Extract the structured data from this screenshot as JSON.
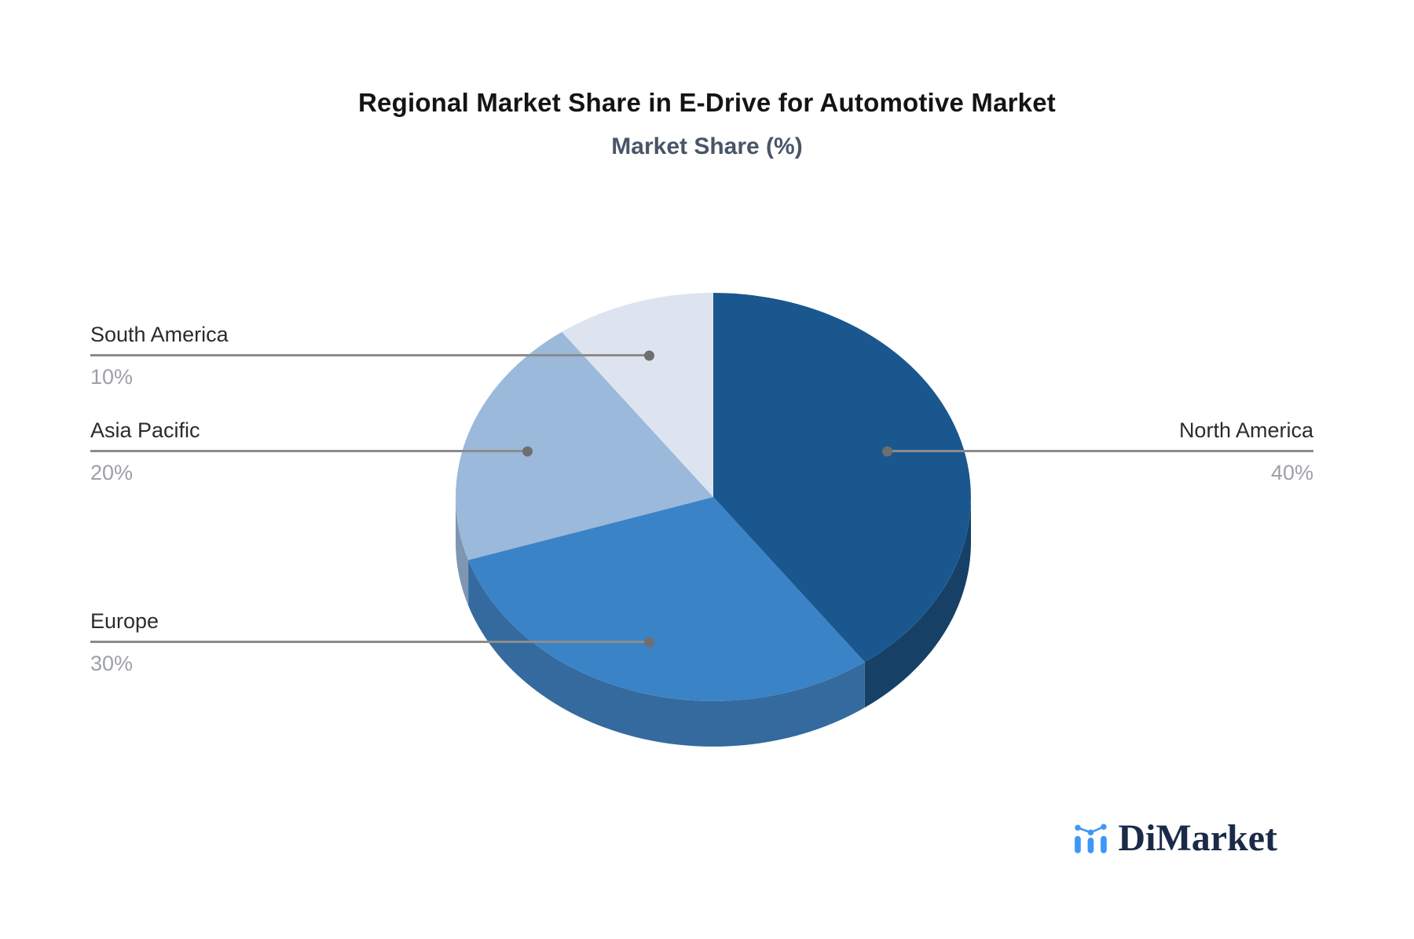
{
  "chart_data": {
    "type": "pie",
    "style": "3d",
    "title": "Regional Market Share in E-Drive for Automotive Market",
    "subtitle": "Market Share (%)",
    "unit": "%",
    "direction": "clockwise",
    "start_angle_deg": 0,
    "categories": [
      "North America",
      "Europe",
      "Asia Pacific",
      "South America"
    ],
    "values": [
      40,
      30,
      20,
      10
    ],
    "slices": [
      {
        "label": "North America",
        "value": 40,
        "pct_label": "40%",
        "color": "#1A578E",
        "side_color": "#164066",
        "callout_side": "right"
      },
      {
        "label": "Europe",
        "value": 30,
        "pct_label": "30%",
        "color": "#3B83C7",
        "side_color": "#346A9E",
        "callout_side": "left"
      },
      {
        "label": "Asia Pacific",
        "value": 20,
        "pct_label": "20%",
        "color": "#9AB9DB",
        "side_color": "#7E96B2",
        "callout_side": "left"
      },
      {
        "label": "South America",
        "value": 10,
        "pct_label": "10%",
        "color": "#DDE4EF",
        "side_color": "#C2CBDA",
        "callout_side": "left"
      }
    ],
    "leader_line_color": "#8C8C8C",
    "leader_dot_color": "#6F6F6F",
    "legend_position": "callouts",
    "grid": false
  },
  "footer": {
    "brand": "DiMarket",
    "logo_icon": "bar-line-chart-logo-icon",
    "logo_icon_color": "#3E97F5",
    "logo_text_color": "#1B2B47"
  }
}
